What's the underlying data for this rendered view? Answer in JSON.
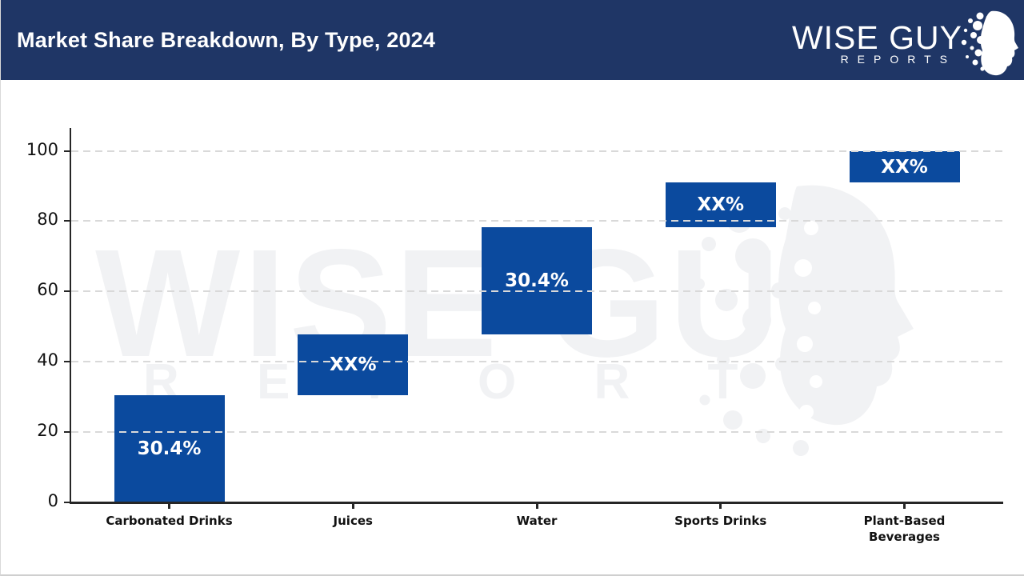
{
  "header": {
    "title": "Market Share Breakdown, By Type, 2024",
    "logo": {
      "line1": "WISE GUY",
      "line2": "REPORTS"
    }
  },
  "watermark": {
    "line1": "WISE GUY",
    "line2": "R E P O R T S"
  },
  "colors": {
    "header_bg": "#1f3666",
    "bar": "#0b4a9e",
    "bar_label": "#ffffff",
    "grid": "#d9d9d9",
    "axis": "#262626",
    "watermark": "#f1f2f4",
    "tick_text": "#111111"
  },
  "chart_data": {
    "type": "bar",
    "subtype": "floating-waterfall",
    "title": "Market Share Breakdown, By Type, 2024",
    "xlabel": "",
    "ylabel": "",
    "categories": [
      "Carbonated Drinks",
      "Juices",
      "Water",
      "Sports Drinks",
      "Plant-Based Beverages"
    ],
    "segments": [
      {
        "category": "Carbonated Drinks",
        "start": 0,
        "end": 30.4,
        "label": "30.4%"
      },
      {
        "category": "Juices",
        "start": 30.4,
        "end": 47.8,
        "label": "XX%"
      },
      {
        "category": "Water",
        "start": 47.8,
        "end": 78.2,
        "label": "30.4%"
      },
      {
        "category": "Sports Drinks",
        "start": 78.2,
        "end": 91.0,
        "label": "XX%"
      },
      {
        "category": "Plant-Based Beverages",
        "start": 91.0,
        "end": 99.9,
        "label": "XX%"
      }
    ],
    "bar_labels": [
      "30.4%",
      "XX%",
      "30.4%",
      "XX%",
      "XX%"
    ],
    "yticks": [
      0,
      20,
      40,
      60,
      80,
      100
    ],
    "ytick_labels": [
      "0",
      "20",
      "40",
      "60",
      "80",
      "100"
    ],
    "ylim": [
      0,
      106.5
    ],
    "grid": "horizontal-dashed",
    "legend": "none"
  }
}
